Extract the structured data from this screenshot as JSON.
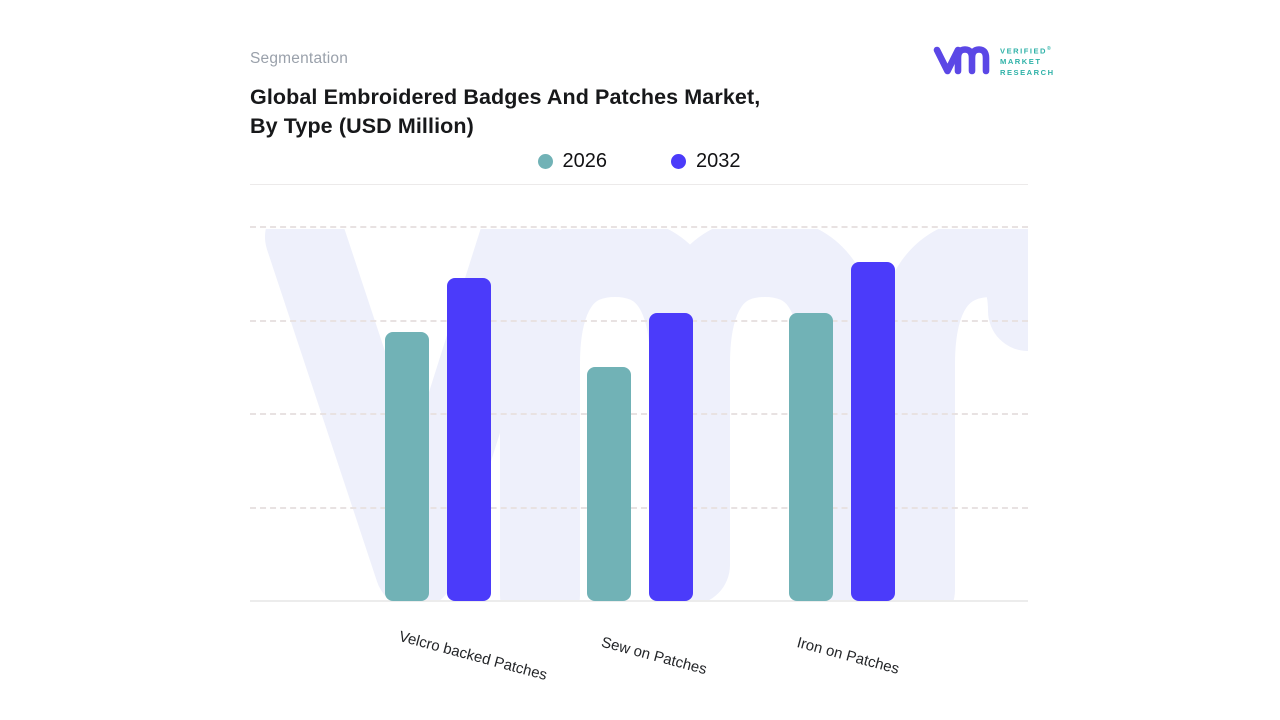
{
  "header": {
    "eyebrow": "Segmentation",
    "title_line1": "Global Embroidered Badges And Patches Market,",
    "title_line2": "By Type (USD Million)"
  },
  "logo": {
    "line1": "VERIFIED",
    "registered_mark": "®",
    "line2": "MARKET",
    "line3": "RESEARCH",
    "monogram_color": "#5b47e6",
    "text_color": "#2fb2a8"
  },
  "legend": [
    {
      "label": "2026",
      "color": "#71b2b6"
    },
    {
      "label": "2032",
      "color": "#4b3bfa"
    }
  ],
  "chart_data": {
    "type": "bar",
    "title": "Global Embroidered Badges And Patches Market, By Type (USD Million)",
    "categories": [
      "Velcro backed Patches",
      "Sew on Patches",
      "Iron on Patches"
    ],
    "series": [
      {
        "name": "2026",
        "color": "#71b2b6",
        "values": [
          71.5,
          62.2,
          76.6
        ]
      },
      {
        "name": "2032",
        "color": "#4b3bfa",
        "values": [
          85.9,
          76.6,
          90.2
        ]
      }
    ],
    "value_units": "relative bar height, % of plot area (no y-axis tick labels shown)",
    "ylim": [
      0,
      100
    ],
    "xlabel": "",
    "ylabel": "",
    "grid": "horizontal dashed",
    "y_tick_labels_visible": false,
    "legend_position": "top-center",
    "watermark": "vmr",
    "colors": {
      "watermark": "#eef0fb",
      "gridline": "#e8e2e2",
      "axis_line": "#ececec",
      "divider": "#eceaea",
      "eyebrow_text": "#9aa1ab",
      "title_text": "#17181a"
    }
  }
}
